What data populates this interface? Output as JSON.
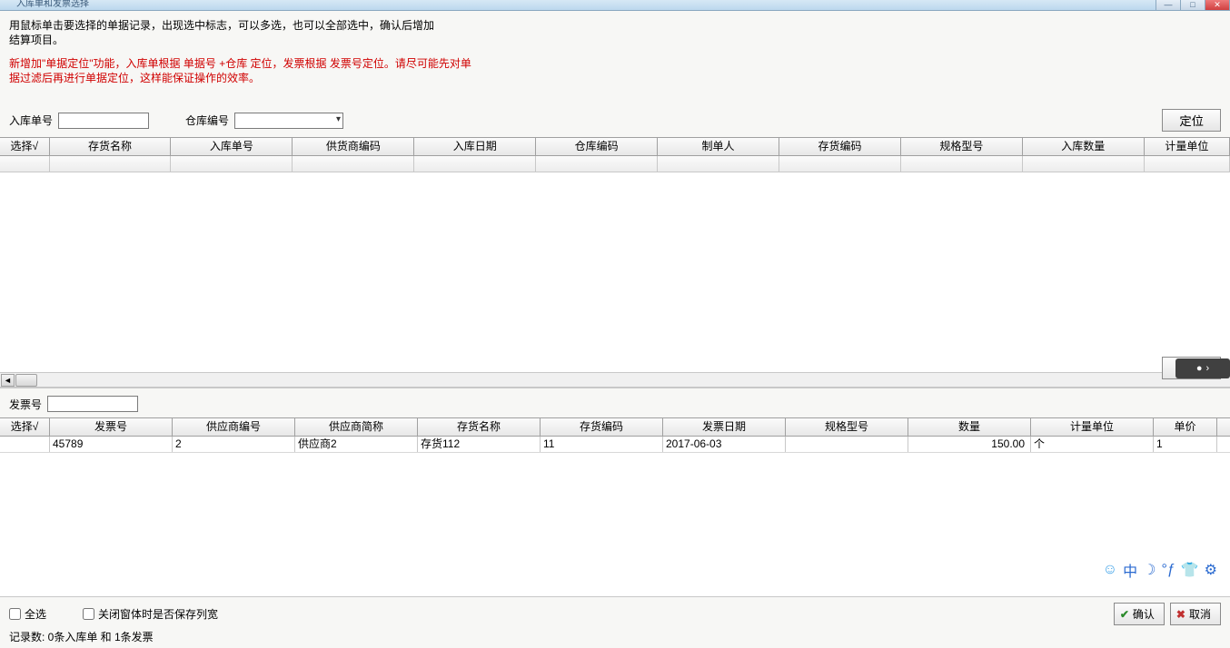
{
  "window": {
    "title": "入库单和发票选择"
  },
  "instructions": {
    "line1": "用鼠标单击要选择的单据记录，出现选中标志，可以多选，也可以全部选中，确认后增加",
    "line2": "结算项目。",
    "red1": "新增加\"单据定位\"功能，入库单根据 单据号 +仓库 定位，发票根据 发票号定位。请尽可能先对单",
    "red2": "据过滤后再进行单据定位，这样能保证操作的效率。"
  },
  "filters": {
    "upper": {
      "label_docno": "入库单号",
      "docno_value": "",
      "label_wh": "仓库编号",
      "wh_value": "",
      "locate_btn": "定位"
    },
    "lower": {
      "label_invno": "发票号",
      "invno_value": "",
      "locate_btn": "定位"
    }
  },
  "upper_grid": {
    "columns": [
      "选择√",
      "存货名称",
      "入库单号",
      "供货商编码",
      "入库日期",
      "仓库编码",
      "制单人",
      "存货编码",
      "规格型号",
      "入库数量",
      "计量单位"
    ],
    "widths": [
      55,
      135,
      135,
      135,
      135,
      135,
      135,
      135,
      135,
      135,
      95
    ],
    "rows": []
  },
  "lower_grid": {
    "columns": [
      "选择√",
      "发票号",
      "供应商编号",
      "供应商简称",
      "存货名称",
      "存货编码",
      "发票日期",
      "规格型号",
      "数量",
      "计量单位",
      "单价"
    ],
    "widths": [
      55,
      135,
      135,
      135,
      135,
      135,
      135,
      135,
      135,
      135,
      70
    ],
    "rows": [
      {
        "select": "",
        "invno": "45789",
        "supcode": "2",
        "supname": "供应商2",
        "invname": "存货112",
        "invcode": "11",
        "invdate": "2017-06-03",
        "spec": "",
        "qty": "150.00",
        "unit": "个",
        "price": "1"
      }
    ]
  },
  "footer": {
    "chk_all": "全选",
    "chk_save_cols": "关闭窗体时是否保存列宽",
    "btn_ok": "确认",
    "btn_cancel": "取消",
    "record_text": "记录数: 0条入库单 和 1条发票"
  },
  "colors": {
    "red": "#d00000",
    "header_bg": "#e8e8e8",
    "border": "#a0a0a0"
  }
}
